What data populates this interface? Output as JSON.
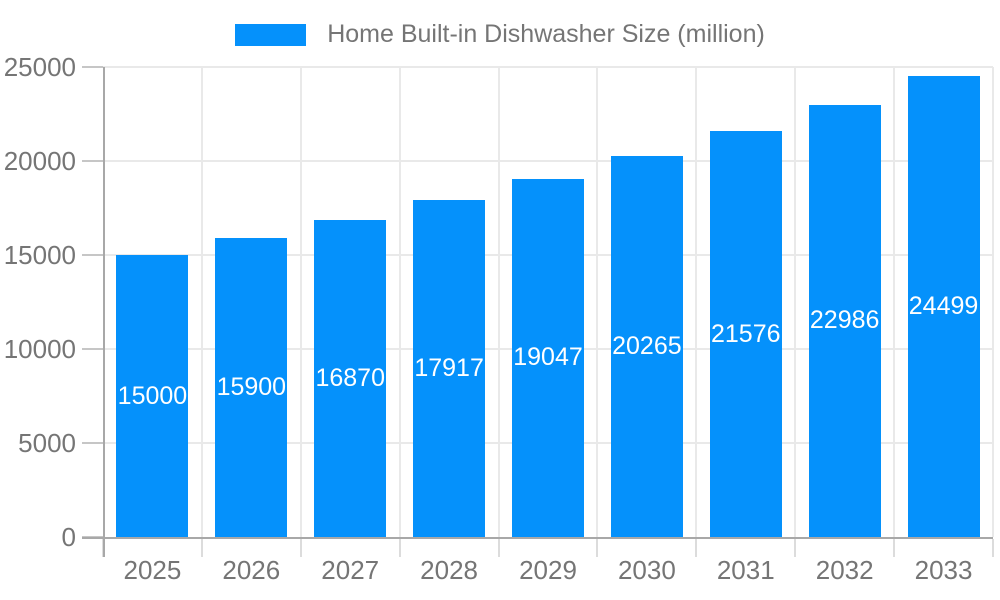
{
  "chart_data": {
    "type": "bar",
    "title": "Home Built-in Dishwasher Size (million)",
    "legend_position": "top-center",
    "categories": [
      "2025",
      "2026",
      "2027",
      "2028",
      "2029",
      "2030",
      "2031",
      "2032",
      "2033"
    ],
    "series": [
      {
        "name": "Home Built-in Dishwasher Size (million)",
        "values": [
          15000,
          15900,
          16870,
          17917,
          19047,
          20265,
          21576,
          22986,
          24499
        ]
      }
    ],
    "xlabel": "",
    "ylabel": "",
    "ylim": [
      0,
      25000
    ],
    "y_ticks": [
      0,
      5000,
      10000,
      15000,
      20000,
      25000
    ],
    "grid": true,
    "value_labels": "inside-center"
  },
  "colors": {
    "bar": "#0591FB",
    "bar_label_text": "#FFFFFF",
    "axis_text": "#757575",
    "axis_line": "#A8A8A8",
    "gridline": "#E9E9E9",
    "y_tick": "#C6C6C6",
    "x_tick": "#DCDCDC",
    "background": "#FFFFFF"
  }
}
